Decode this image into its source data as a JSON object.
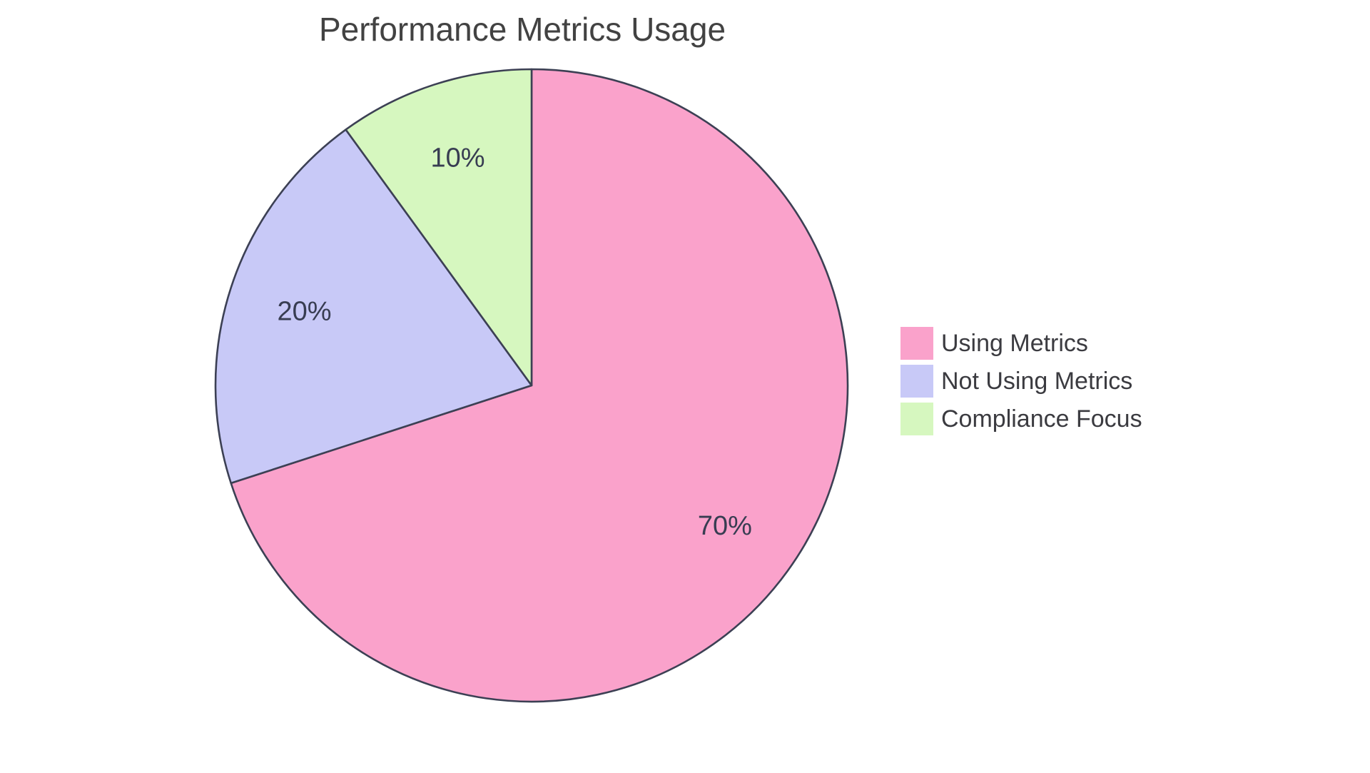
{
  "chart_data": {
    "type": "pie",
    "title": "Performance Metrics Usage",
    "categories": [
      "Using Metrics",
      "Not Using Metrics",
      "Compliance Focus"
    ],
    "values": [
      70,
      20,
      10
    ],
    "value_labels": [
      "70%",
      "20%",
      "10%"
    ],
    "unit": "%",
    "colors": [
      "#FAA2CB",
      "#C8C9F7",
      "#D6F7BF"
    ],
    "border_color": "#3C4054",
    "start_angle_deg": 0,
    "direction": "clockwise",
    "legend_position": "right",
    "background": "#FFFFFF",
    "title_color": "#424242",
    "label_color": "#383D52",
    "legend_text_color": "#3B3B40"
  }
}
